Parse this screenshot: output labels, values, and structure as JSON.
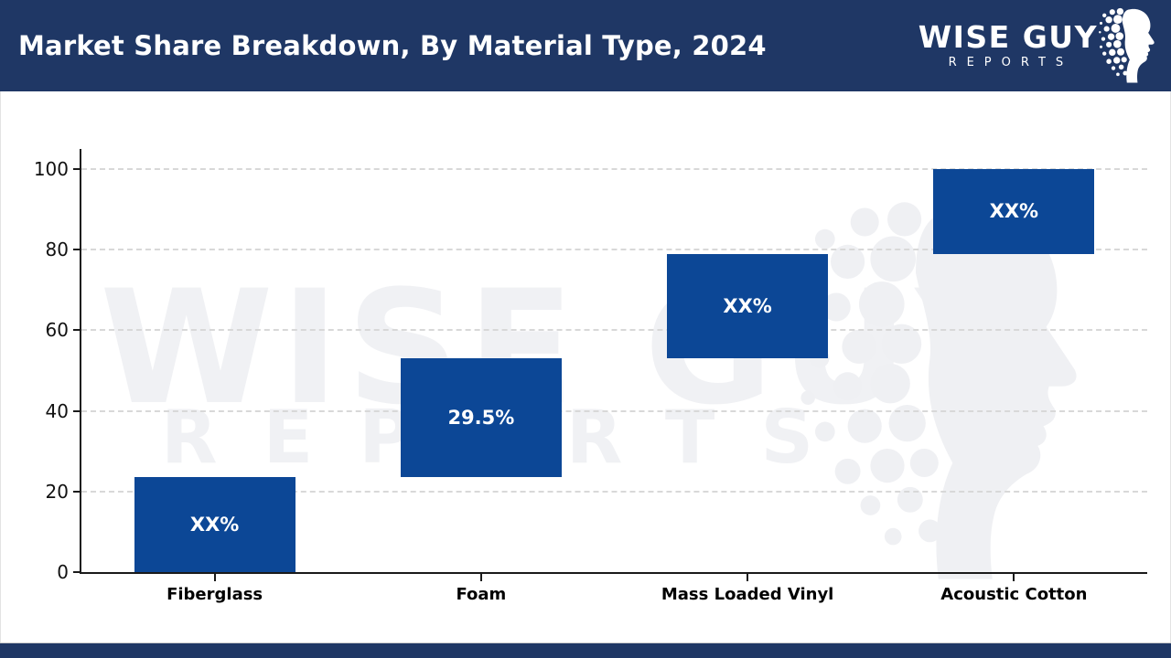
{
  "header": {
    "title": "Market Share Breakdown, By Material Type, 2024",
    "logo": {
      "line1": "WISE GUY",
      "line2": "REPORTS"
    }
  },
  "watermark": {
    "line1": "WISE GUY",
    "line2": "REPORTS"
  },
  "chart_data": {
    "type": "bar",
    "subtype": "waterfall",
    "title": "Market Share Breakdown, By Material Type, 2024",
    "categories": [
      "Fiberglass",
      "Foam",
      "Mass Loaded Vinyl",
      "Acoustic Cotton"
    ],
    "segments": [
      {
        "category": "Fiberglass",
        "start": 0,
        "end": 23.5,
        "label": "XX%"
      },
      {
        "category": "Foam",
        "start": 23.5,
        "end": 53,
        "label": "29.5%"
      },
      {
        "category": "Mass Loaded Vinyl",
        "start": 53,
        "end": 79,
        "label": "XX%"
      },
      {
        "category": "Acoustic Cotton",
        "start": 79,
        "end": 100,
        "label": "XX%"
      }
    ],
    "yticks": [
      0,
      20,
      40,
      60,
      80,
      100
    ],
    "ylim": [
      0,
      100
    ],
    "xlabel": "",
    "ylabel": "",
    "legend": null,
    "grid": "horizontal-dashed",
    "bar_color": "#0c4796",
    "bar_label_color": "#ffffff",
    "accent_navy": "#1f3765"
  }
}
